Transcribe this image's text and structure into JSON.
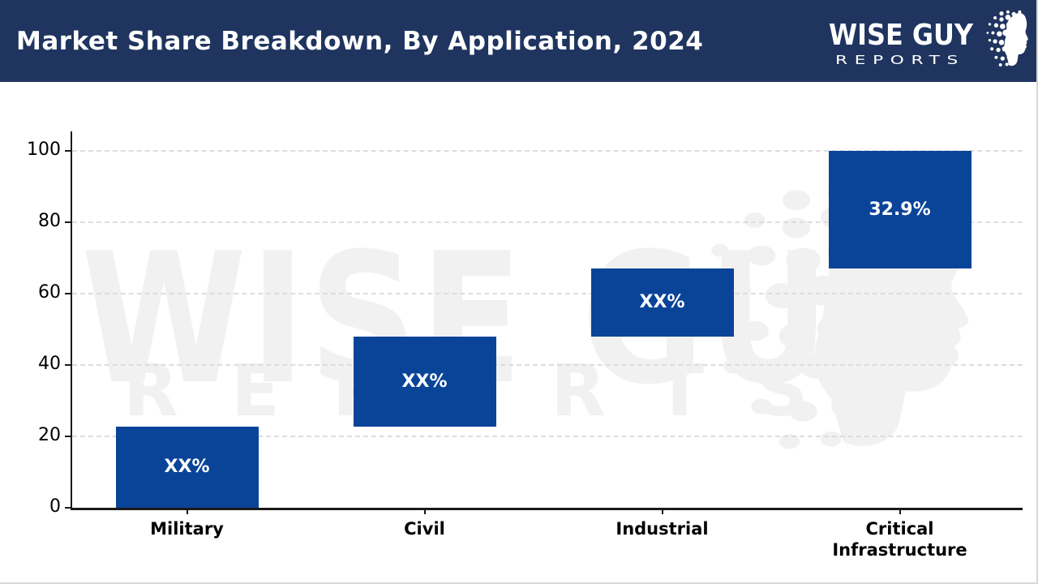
{
  "header": {
    "title": "Market Share Breakdown, By Application, 2024",
    "logo_line1": "WISE GUY",
    "logo_line2": "REPORTS"
  },
  "watermark": {
    "line1": "WISE GUY",
    "line2": "REPORTS"
  },
  "colors": {
    "header_bg": "#1f345f",
    "bar": "#0a4499",
    "bar_label": "#ffffff",
    "watermark": "#f1f1f1",
    "grid": "#dcdcdc",
    "axis": "#1a1a1a"
  },
  "chart_data": {
    "type": "bar",
    "subtype": "waterfall-floating-bars",
    "title": "Market Share Breakdown, By Application, 2024",
    "xlabel": "",
    "ylabel": "",
    "ylim": [
      0,
      100
    ],
    "yticks": [
      0,
      20,
      40,
      60,
      80,
      100
    ],
    "grid": "horizontal-dashed",
    "legend": "none",
    "categories": [
      "Military",
      "Civil",
      "Industrial",
      "Critical\nInfrastructure"
    ],
    "series": [
      {
        "name": "Market share (%)",
        "segments": [
          {
            "category": "Military",
            "label": "XX%",
            "start": 0,
            "end": 22.8
          },
          {
            "category": "Civil",
            "label": "XX%",
            "start": 22.8,
            "end": 48.0
          },
          {
            "category": "Industrial",
            "label": "XX%",
            "start": 48.0,
            "end": 67.1
          },
          {
            "category": "Critical Infrastructure",
            "label": "32.9%",
            "start": 67.1,
            "end": 100
          }
        ]
      }
    ]
  }
}
